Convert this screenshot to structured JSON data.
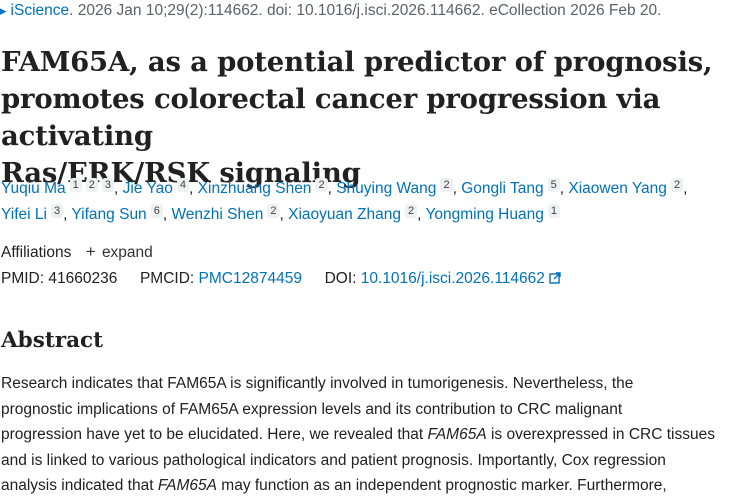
{
  "citation": {
    "journal": "iScience",
    "details": ". 2026 Jan 10;29(2):114662. doi: 10.1016/j.isci.2026.114662. eCollection 2026 Feb 20."
  },
  "title": {
    "line1": "FAM65A, as a potential predictor of prognosis,",
    "line2": "promotes colorectal cancer progression via activating",
    "line3": "Ras/ERK/RSK signaling"
  },
  "authors": [
    {
      "name": "Yuqiu Ma",
      "affils": [
        "1",
        "2",
        "3"
      ]
    },
    {
      "name": "Jie Yao",
      "affils": [
        "4"
      ]
    },
    {
      "name": "Xinzhuang Shen",
      "affils": [
        "2"
      ]
    },
    {
      "name": "Shuying Wang",
      "affils": [
        "2"
      ]
    },
    {
      "name": "Gongli Tang",
      "affils": [
        "5"
      ]
    },
    {
      "name": "Xiaowen Yang",
      "affils": [
        "2"
      ]
    },
    {
      "name": "Yifei Li",
      "affils": [
        "3"
      ]
    },
    {
      "name": "Yifang Sun",
      "affils": [
        "6"
      ]
    },
    {
      "name": "Wenzhi Shen",
      "affils": [
        "2"
      ]
    },
    {
      "name": "Xiaoyuan Zhang",
      "affils": [
        "2"
      ]
    },
    {
      "name": "Yongming Huang",
      "affils": [
        "1"
      ]
    }
  ],
  "affiliations": {
    "label": "Affiliations",
    "expand": "expand"
  },
  "ids": {
    "pmid_label": "PMID:",
    "pmid": "41660236",
    "pmcid_label": "PMCID:",
    "pmcid": "PMC12874459",
    "doi_label": "DOI:",
    "doi": "10.1016/j.isci.2026.114662"
  },
  "abstract": {
    "heading": "Abstract",
    "l1": "Research indicates that FAM65A is significantly involved in tumorigenesis. Nevertheless, the",
    "l2": "prognostic implications of FAM65A expression levels and its contribution to CRC malignant",
    "l3a": "progression have yet to be elucidated. Here, we revealed that ",
    "l3i": "FAM65A",
    "l3b": " is overexpressed in CRC tissues",
    "l4": "and is linked to various pathological indicators and patient prognosis. Importantly, Cox regression",
    "l5a": "analysis indicated that ",
    "l5i": "FAM65A",
    "l5b": " may function as an independent prognostic marker. Furthermore,"
  }
}
